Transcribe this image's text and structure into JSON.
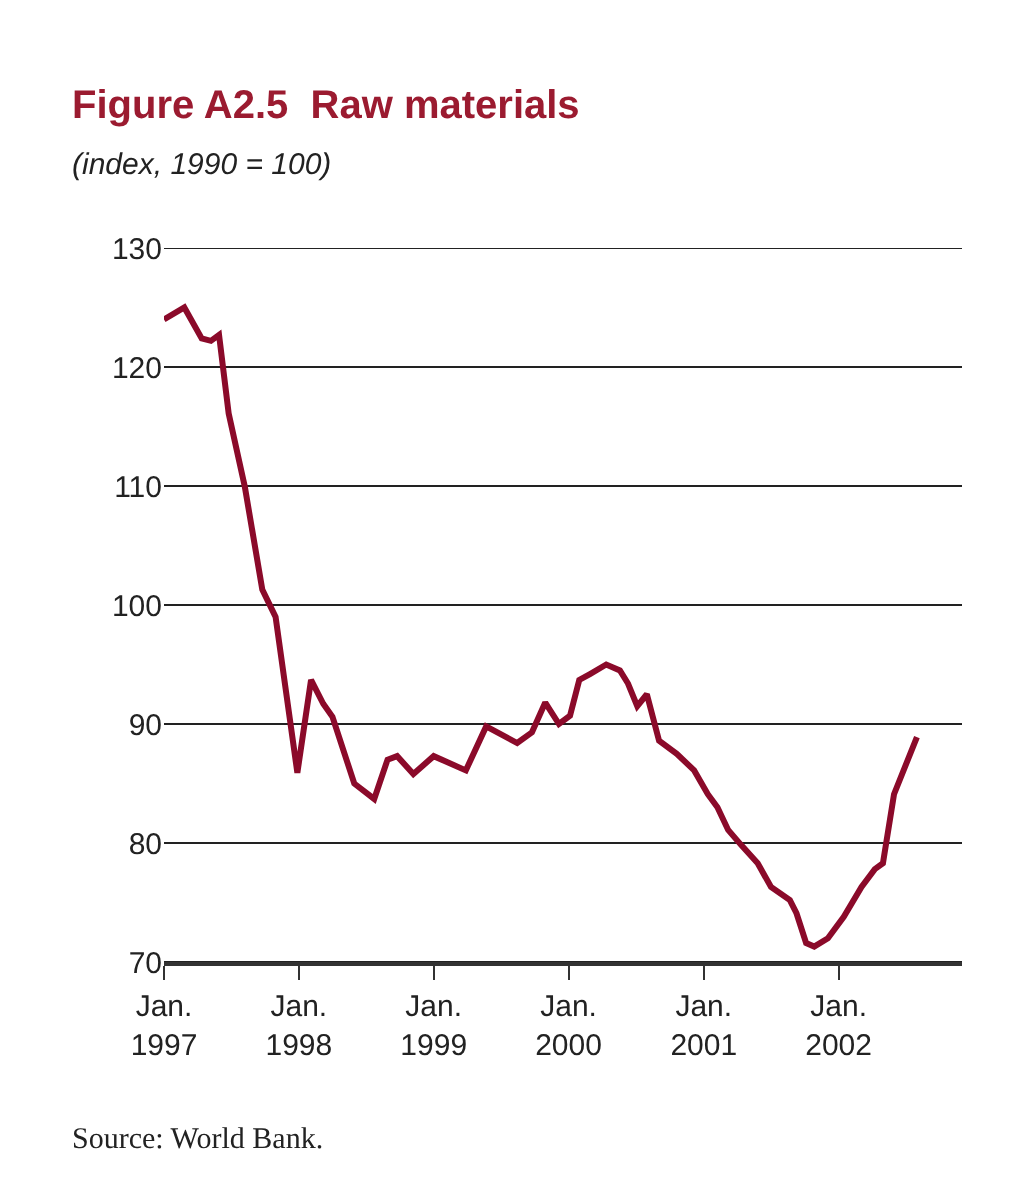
{
  "chart_data": {
    "type": "line",
    "title": "Figure A2.5  Raw materials",
    "subtitle": "(index, 1990 = 100)",
    "annotations": [
      "Source: World Bank."
    ],
    "x": [
      "1997-01-01",
      "1997-02-25",
      "1997-04-13",
      "1997-05-08",
      "1997-05-30",
      "1997-06-25",
      "1997-08-08",
      "1997-09-24",
      "1997-10-30",
      "1997-12-28",
      "1998-02-03",
      "1998-03-08",
      "1998-04-02",
      "1998-05-31",
      "1998-07-24",
      "1998-08-29",
      "1998-09-24",
      "1998-11-07",
      "1999-01-01",
      "1999-03-29",
      "1999-05-23",
      "1999-08-15",
      "1999-09-24",
      "1999-10-30",
      "1999-12-06",
      "2000-01-05",
      "2000-01-30",
      "2000-02-28",
      "2000-04-12",
      "2000-05-19",
      "2000-06-10",
      "2000-07-05",
      "2000-07-31",
      "2000-09-02",
      "2000-10-20",
      "2000-12-06",
      "2001-01-12",
      "2001-02-07",
      "2001-03-08",
      "2001-04-13",
      "2001-05-27",
      "2001-07-02",
      "2001-08-22",
      "2001-09-09",
      "2001-10-05",
      "2001-10-27",
      "2001-12-03",
      "2002-01-15",
      "2002-03-04",
      "2002-04-09",
      "2002-05-01",
      "2002-05-31",
      "2002-08-01"
    ],
    "series": [
      {
        "color": "#8b0a2a",
        "values": [
          124.0,
          125.0,
          122.4,
          122.2,
          122.7,
          116.1,
          109.9,
          101.3,
          99.0,
          85.9,
          93.7,
          91.7,
          90.6,
          85.0,
          83.7,
          87.0,
          87.3,
          85.8,
          87.3,
          86.1,
          89.8,
          88.4,
          89.3,
          91.8,
          90.0,
          90.7,
          93.7,
          94.2,
          95.0,
          94.5,
          93.4,
          91.5,
          92.5,
          88.6,
          87.5,
          86.1,
          84.1,
          83.0,
          81.1,
          79.8,
          78.3,
          76.3,
          75.2,
          74.1,
          71.6,
          71.3,
          72.0,
          73.8,
          76.3,
          77.8,
          78.3,
          84.1,
          88.9
        ]
      }
    ],
    "xlim": [
      "1997-01-01",
      "2002-12-01"
    ],
    "xticks": [
      {
        "value": "1997-01-01",
        "label": "Jan.\n1997"
      },
      {
        "value": "1998-01-01",
        "label": "Jan.\n1998"
      },
      {
        "value": "1999-01-01",
        "label": "Jan.\n1999"
      },
      {
        "value": "2000-01-01",
        "label": "Jan.\n2000"
      },
      {
        "value": "2001-01-01",
        "label": "Jan.\n2001"
      },
      {
        "value": "2002-01-01",
        "label": "Jan.\n2002"
      }
    ],
    "ylim": [
      70,
      130
    ],
    "yticks": [
      70,
      80,
      90,
      100,
      110,
      120,
      130
    ],
    "grid": "y",
    "marker": "none",
    "line_style": "solid"
  }
}
